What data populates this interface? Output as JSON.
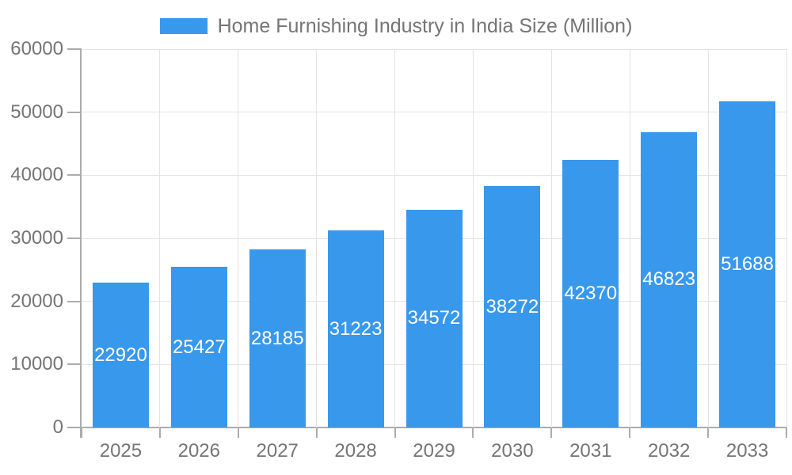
{
  "chart_data": {
    "type": "bar",
    "title": "Home Furnishing Industry in India Size (Million)",
    "legend": {
      "position": "top",
      "label": "Home Furnishing Industry in India Size (Million)"
    },
    "categories": [
      "2025",
      "2026",
      "2027",
      "2028",
      "2029",
      "2030",
      "2031",
      "2032",
      "2033"
    ],
    "series": [
      {
        "name": "Home Furnishing Industry in India Size (Million)",
        "values": [
          22920,
          25427,
          28185,
          31223,
          34572,
          38272,
          42370,
          46823,
          51688
        ]
      }
    ],
    "value_labels": [
      "22920",
      "25427",
      "28185",
      "31223",
      "34572",
      "38272",
      "42370",
      "46823",
      "51688"
    ],
    "xlabel": "",
    "ylabel": "",
    "ylim": [
      0,
      60000
    ],
    "yticks": [
      0,
      10000,
      20000,
      30000,
      40000,
      50000,
      60000
    ],
    "grid": true
  },
  "colors": {
    "bar": "#3898EC",
    "grid": "#E4E4E4",
    "axis": "#ACACAC",
    "text": "#757575",
    "bar_label": "#FFFFFF",
    "background": "#FFFFFF"
  }
}
